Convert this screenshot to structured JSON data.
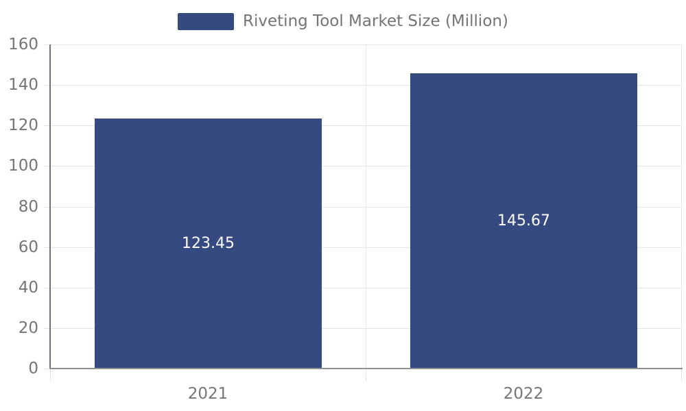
{
  "legend": {
    "label": "Riveting Tool Market Size (Million)"
  },
  "colors": {
    "bar": "#354A81",
    "value_label": "#FFFFFF",
    "tick_label": "#757575",
    "legend_text": "#747474",
    "gridline": "#E4E4E8",
    "split_line": "#E4E6EC",
    "y_axis_line": "#71717A",
    "x_axis_line": "#8F8F94",
    "background": "#FFFFFF"
  },
  "chart_data": {
    "type": "bar",
    "title": "",
    "categories": [
      "2021",
      "2022"
    ],
    "series": [
      {
        "name": "Riveting Tool Market Size (Million)",
        "values": [
          123.45,
          145.67
        ]
      }
    ],
    "value_labels": [
      "123.45",
      "145.67"
    ],
    "xlabel": "",
    "ylabel": "",
    "ylim": [
      0,
      160
    ],
    "ytick_step": 20,
    "yticks": [
      0,
      20,
      40,
      60,
      80,
      100,
      120,
      140,
      160
    ],
    "grid": "horizontal gridlines on, vertical split line between categories, right border line",
    "legend_position": "top-center",
    "value_label_position": "center-of-bar"
  }
}
